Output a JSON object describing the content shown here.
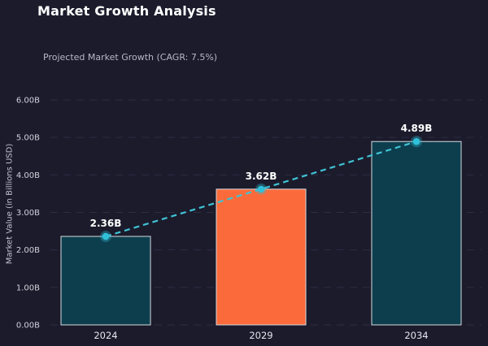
{
  "header": {
    "title": "Market Growth Analysis",
    "subtitle": "Projected Market Growth (CAGR: 7.5%)"
  },
  "chart_data": {
    "type": "bar",
    "title": "Market Growth Analysis",
    "subtitle": "Projected Market Growth (CAGR: 7.5%)",
    "categories": [
      "2024",
      "2029",
      "2034"
    ],
    "values": [
      2.36,
      3.62,
      4.89
    ],
    "value_labels": [
      "2.36B",
      "3.62B",
      "4.89B"
    ],
    "bar_colors": [
      "#0d3e4e",
      "#fb6a3a",
      "#0d3e4e"
    ],
    "xlabel": "",
    "ylabel": "Market Value (in Billions USD)",
    "ylim": [
      0,
      6
    ],
    "yticks": [
      0,
      1,
      2,
      3,
      4,
      5,
      6
    ],
    "ytick_labels": [
      "0.00B",
      "1.00B",
      "2.00B",
      "3.00B",
      "4.00B",
      "5.00B",
      "6.00B"
    ],
    "grid": "faint dashed horizontal",
    "legend": "none",
    "overlay": {
      "type": "line",
      "style": "dashed",
      "line_color": "#3fc3d4",
      "marker_color": "#2fc0da",
      "x": [
        "2024",
        "2029",
        "2034"
      ],
      "y": [
        2.36,
        3.62,
        4.89
      ]
    }
  },
  "colors": {
    "background": "#1b1b2c",
    "title_text": "#ffffff",
    "subtitle_text": "#b7b7c5",
    "axis_text": "#d2d2dc",
    "bar_border": "#d5dbdf"
  }
}
